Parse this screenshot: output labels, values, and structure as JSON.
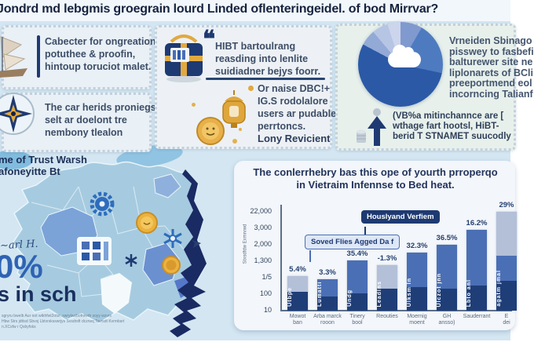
{
  "header": {
    "title": "Jondrd md lebgmis groegrain lourd Linded oflenteringeidel. of bod Mirrvar?"
  },
  "boxes": {
    "box1": {
      "lines": [
        "Cabecter for ongreations",
        "potuthee & proofin,",
        "hintoup toruciot malet."
      ]
    },
    "box2": {
      "lines": [
        "The car herids proniegsy",
        "selt ar doelont tre",
        "nembony tlealon"
      ]
    },
    "box3": {
      "quote_lines": [
        "HIBT bartoulrang",
        "reasding into lenlite",
        "suidiadner bejys foorr."
      ],
      "bullet_lines": [
        "Or naise DBC!+",
        "IG.S rodolalore",
        "users ar pudable",
        "perrtoncs."
      ],
      "footer": "Lony Revicient"
    },
    "box4": {
      "pie_text_lines": [
        "Vrneiden Sbinago",
        "pisswey to fasbefi",
        "balturewer site ne",
        "liplonarets of BCli",
        "preeportmend eol",
        "incorncing Talianf"
      ],
      "arrow_text_lines": [
        "(VB%a mitinchannce are [",
        "wthage fart hootsl, HiBT-",
        "berid T STNAMET suucodly"
      ]
    }
  },
  "map_section": {
    "heading_lines": [
      "me of Trust Warsh",
      "afoneyitte Bt"
    ],
    "signature": "~arl H.",
    "stat_value": "0%",
    "stat_label": "s in sch",
    "footnotes": [
      "sgryru bwelb Aur oot wtkhfwt2otsr, swrytwzbofrwvrb soyy wzvrs",
      "Hbw Strs jdttsd Sbvsj Lbtvrsksswrjys Svsdrsft dczrwq Tsvrsdt Kvrmbsrt",
      "n.XCsfw r Qsbyfsks"
    ]
  },
  "chart_data": [
    {
      "type": "bar",
      "title": "The conlerrhebry bas this ope of yourth prroperqo in Vietraim Infennse to Bed heat.",
      "title_lines": [
        "The conlerrhebry bas this ope of yourth prroperqo",
        "in Vietraim Infennse to Bed heat."
      ],
      "y_ticks": [
        "22,000",
        "3,000",
        "2,000",
        "1,300",
        "1/5",
        "100",
        "10"
      ],
      "y_axis_label": "Stxsdfdw Exmrvwd",
      "xlabel": "",
      "ylabel": "",
      "grid": false,
      "legend_position": "none",
      "categories": [
        "Mowot ban",
        "Arba marck rooon",
        "Tinery bool",
        "Reouties",
        "Moernig moent",
        "GH ansso)",
        "Sauderrant",
        "E dei"
      ],
      "colors": {
        "navy": "#1f3e78",
        "mid": "#4a6fb5",
        "light": "#b3c0d8"
      },
      "bars": [
        {
          "label": "5.4%",
          "height": 44,
          "segments": [
            {
              "color": "navy",
              "h": 24
            },
            {
              "color": "light",
              "h": 20
            }
          ],
          "vtext": "Utbpe",
          "xlabel": [
            "Mowot",
            "ban"
          ]
        },
        {
          "label": "3.3%",
          "height": 40,
          "segments": [
            {
              "color": "navy",
              "h": 18
            },
            {
              "color": "mid",
              "h": 22
            }
          ],
          "vtext": "Lumatti",
          "xlabel": [
            "Arba marck",
            "rooon"
          ]
        },
        {
          "label": "35.4%",
          "height": 64,
          "segments": [
            {
              "color": "navy",
              "h": 22
            },
            {
              "color": "mid",
              "h": 42
            }
          ],
          "vtext": "Undg",
          "xlabel": [
            "Tinery",
            "bool"
          ]
        },
        {
          "label": "-1.3%",
          "height": 58,
          "segments": [
            {
              "color": "navy",
              "h": 28
            },
            {
              "color": "light",
              "h": 30
            }
          ],
          "vtext": "Leadlns",
          "xlabel": [
            "Reouties",
            ""
          ]
        },
        {
          "label": "32.3%",
          "height": 74,
          "segments": [
            {
              "color": "navy",
              "h": 30
            },
            {
              "color": "mid",
              "h": 44
            }
          ],
          "vtext": "Ulksm ln",
          "xlabel": [
            "Moernig",
            "moent"
          ]
        },
        {
          "label": "36.5%",
          "height": 84,
          "segments": [
            {
              "color": "navy",
              "h": 28
            },
            {
              "color": "mid",
              "h": 56
            }
          ],
          "vtext": "Ulczot jnn",
          "xlabel": [
            "GH",
            "ansso)"
          ]
        },
        {
          "label": "16.2%",
          "height": 103,
          "segments": [
            {
              "color": "navy",
              "h": 32
            },
            {
              "color": "mid",
              "h": 71
            }
          ],
          "vtext": "Lbto anl",
          "xlabel": [
            "Sauderrant",
            ""
          ]
        },
        {
          "label": "29%",
          "height": 126,
          "segments": [
            {
              "color": "navy",
              "h": 38
            },
            {
              "color": "mid",
              "h": 32
            },
            {
              "color": "light",
              "h": 56
            }
          ],
          "vtext": "agatm jmal",
          "xlabel": [
            "E",
            "dei"
          ]
        }
      ],
      "callouts": [
        {
          "text": "Soved Flies Agged Da f",
          "style": "light"
        },
        {
          "text": "Houslyand Verfiem",
          "style": "dark"
        }
      ]
    },
    {
      "type": "pie",
      "slices": [
        {
          "color": "#8099ce",
          "deg": 30
        },
        {
          "color": "#4e7bc0",
          "deg": 72
        },
        {
          "color": "#2b59a6",
          "deg": 196
        },
        {
          "color": "#93a9d6",
          "deg": 22
        },
        {
          "color": "#b7c5e4",
          "deg": 22
        },
        {
          "color": "#ccd5ec",
          "deg": 18
        }
      ],
      "center_icon": "cloud"
    }
  ]
}
